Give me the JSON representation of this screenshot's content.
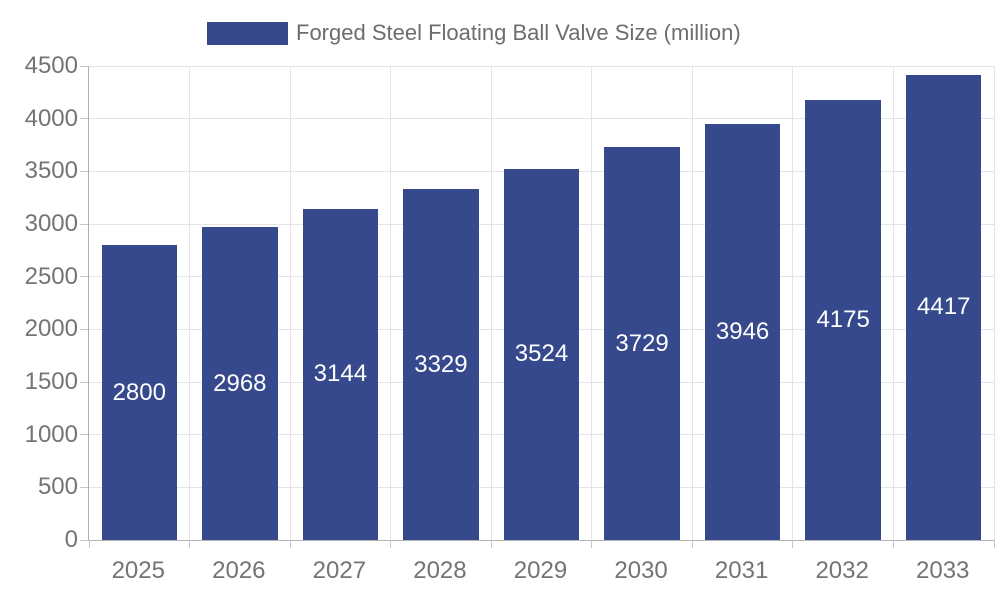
{
  "legend": {
    "label": "Forged Steel Floating Ball Valve Size (million)"
  },
  "chart_data": {
    "type": "bar",
    "title": "Forged Steel Floating Ball Valve Size (million)",
    "categories": [
      "2025",
      "2026",
      "2027",
      "2028",
      "2029",
      "2030",
      "2031",
      "2032",
      "2033"
    ],
    "values": [
      2800,
      2968,
      3144,
      3329,
      3524,
      3729,
      3946,
      4175,
      4417
    ],
    "value_labels": [
      "2800",
      "2968",
      "3144",
      "3329",
      "3524",
      "3729",
      "3946",
      "4175",
      "4417"
    ],
    "xlabel": "",
    "ylabel": "",
    "ylim": [
      0,
      4500
    ],
    "y_ticks": [
      0,
      500,
      1000,
      1500,
      2000,
      2500,
      3000,
      3500,
      4000,
      4500
    ],
    "grid": true,
    "legend_position": "top",
    "value_label_position": "inside-center",
    "colors": {
      "bar": "#36498C",
      "grid": "#e3e3ea",
      "axis": "#b0b0b0",
      "tick": "#c6c6cd",
      "axis_label": "#747474",
      "value_label": "#ffffff",
      "legend_text": "#6d6d6d",
      "background": "#ffffff"
    }
  }
}
